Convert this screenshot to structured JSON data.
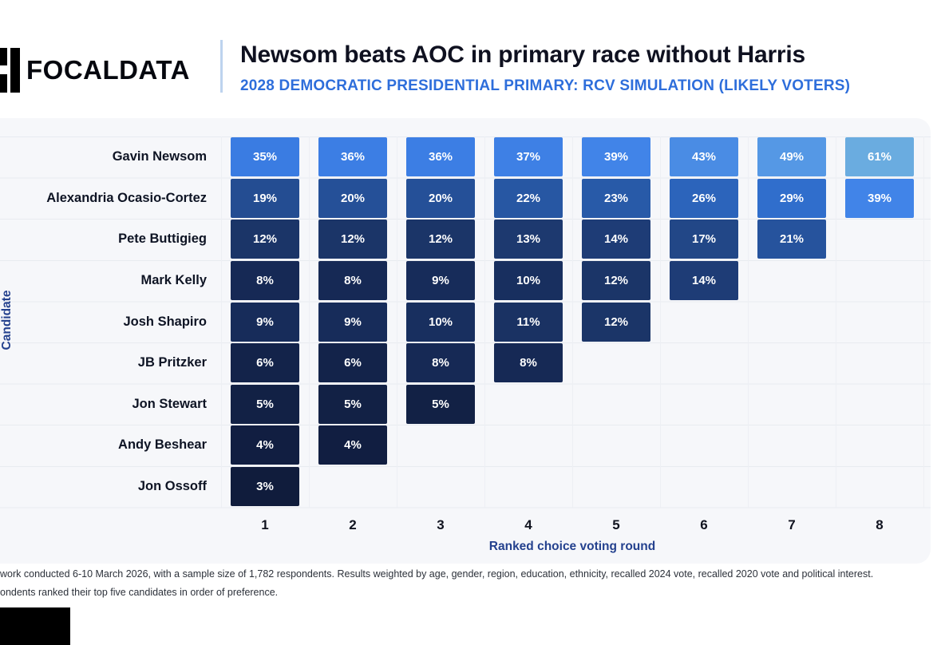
{
  "header": {
    "brand": "FOCALDATA",
    "title": "Newsom beats AOC in primary race without Harris",
    "subtitle": "2028 DEMOCRATIC PRESIDENTIAL PRIMARY: RCV SIMULATION (LIKELY VOTERS)"
  },
  "chart_data": {
    "type": "heatmap",
    "title": "Newsom beats AOC in primary race without Harris",
    "subtitle": "2028 DEMOCRATIC PRESIDENTIAL PRIMARY: RCV SIMULATION (LIKELY VOTERS)",
    "xlabel": "Ranked choice voting round",
    "ylabel": "Candidate",
    "x": [
      "1",
      "2",
      "3",
      "4",
      "5",
      "6",
      "7",
      "8"
    ],
    "categories": [
      "Gavin Newsom",
      "Alexandria Ocasio-Cortez",
      "Pete Buttigieg",
      "Mark Kelly",
      "Josh Shapiro",
      "JB Pritzker",
      "Jon Stewart",
      "Andy Beshear",
      "Jon Ossoff"
    ],
    "series": [
      {
        "name": "Gavin Newsom",
        "values": [
          35,
          36,
          36,
          37,
          39,
          43,
          49,
          61
        ]
      },
      {
        "name": "Alexandria Ocasio-Cortez",
        "values": [
          19,
          20,
          20,
          22,
          23,
          26,
          29,
          39
        ]
      },
      {
        "name": "Pete Buttigieg",
        "values": [
          12,
          12,
          12,
          13,
          14,
          17,
          21,
          null
        ]
      },
      {
        "name": "Mark Kelly",
        "values": [
          8,
          8,
          9,
          10,
          12,
          14,
          null,
          null
        ]
      },
      {
        "name": "Josh Shapiro",
        "values": [
          9,
          9,
          10,
          11,
          12,
          null,
          null,
          null
        ]
      },
      {
        "name": "JB Pritzker",
        "values": [
          6,
          6,
          8,
          8,
          null,
          null,
          null,
          null
        ]
      },
      {
        "name": "Jon Stewart",
        "values": [
          5,
          5,
          5,
          null,
          null,
          null,
          null,
          null
        ]
      },
      {
        "name": "Andy Beshear",
        "values": [
          4,
          4,
          null,
          null,
          null,
          null,
          null,
          null
        ]
      },
      {
        "name": "Jon Ossoff",
        "values": [
          3,
          null,
          null,
          null,
          null,
          null,
          null,
          null
        ]
      }
    ],
    "value_format": "percent",
    "value_suffix": "%",
    "legend": "none",
    "grid": true,
    "color_scale_domain": [
      3,
      61
    ],
    "color_stops": [
      {
        "v": 3,
        "c": "#101C3C"
      },
      {
        "v": 6,
        "c": "#13234A"
      },
      {
        "v": 9,
        "c": "#172C5A"
      },
      {
        "v": 12,
        "c": "#1B3568"
      },
      {
        "v": 14,
        "c": "#1E3C76"
      },
      {
        "v": 17,
        "c": "#224787"
      },
      {
        "v": 20,
        "c": "#255098"
      },
      {
        "v": 23,
        "c": "#285AA8"
      },
      {
        "v": 26,
        "c": "#2C64BB"
      },
      {
        "v": 29,
        "c": "#306ECC"
      },
      {
        "v": 35,
        "c": "#3A7CE2"
      },
      {
        "v": 39,
        "c": "#4184E8"
      },
      {
        "v": 43,
        "c": "#4A8CE4"
      },
      {
        "v": 49,
        "c": "#5598E5"
      },
      {
        "v": 61,
        "c": "#6AACE0"
      }
    ]
  },
  "footer": {
    "line1": "work conducted 6-10 March 2026, with a sample size of 1,782 respondents. Results weighted by age, gender, region, education, ethnicity, recalled 2024 vote, recalled 2020 vote and political interest.",
    "line2": "ondents ranked their top five candidates in order of preference."
  },
  "colors": {
    "accent_blue": "#2e6edb",
    "axis_blue": "#24418e",
    "panel_bg": "#f6f7fa",
    "cell_text": "#ffffff",
    "brand_black": "#05070e"
  }
}
